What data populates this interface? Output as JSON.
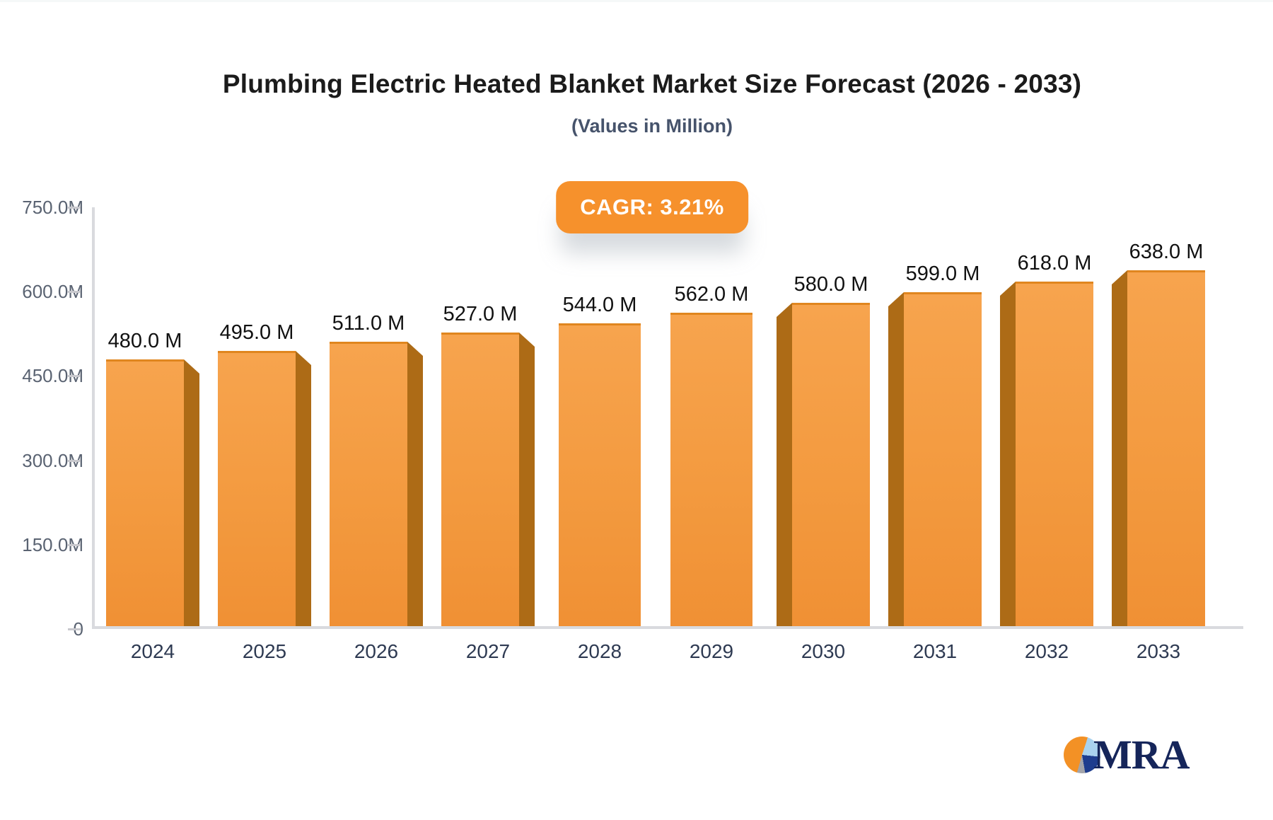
{
  "header": {
    "title": "Plumbing Electric Heated Blanket Market Size Forecast (2026 - 2033)",
    "subtitle": "(Values in Million)"
  },
  "badge": {
    "label": "CAGR: 3.21%",
    "color": "#f6912c",
    "text_color": "#ffffff"
  },
  "chart_data": {
    "type": "bar",
    "title": "Plumbing Electric Heated Blanket Market Size Forecast (2026 - 2033)",
    "subtitle": "(Values in Million)",
    "categories": [
      "2024",
      "2025",
      "2026",
      "2027",
      "2028",
      "2029",
      "2030",
      "2031",
      "2032",
      "2033"
    ],
    "values": [
      480,
      495,
      511,
      527,
      544,
      562,
      580,
      599,
      618,
      638
    ],
    "bar_labels": [
      "480.0 M",
      "495.0 M",
      "511.0 M",
      "527.0 M",
      "544.0 M",
      "562.0 M",
      "580.0 M",
      "599.0 M",
      "618.0 M",
      "638.0 M"
    ],
    "yticks": [
      {
        "label": "750.0M",
        "value": 750
      },
      {
        "label": "600.0M",
        "value": 600
      },
      {
        "label": "450.0M",
        "value": 450
      },
      {
        "label": "300.0M",
        "value": 300
      },
      {
        "label": "150.0M",
        "value": 150
      },
      {
        "label": "0",
        "value": 0
      }
    ],
    "ylim": [
      0,
      750
    ],
    "xlabel": "",
    "ylabel": "",
    "grid": false,
    "legend": "none",
    "annotations": [
      {
        "text": "CAGR: 3.21%"
      }
    ],
    "bar_color": "#f39a3f",
    "bar_side_color": "#ad6b16"
  },
  "logo": {
    "text": "MRA"
  }
}
